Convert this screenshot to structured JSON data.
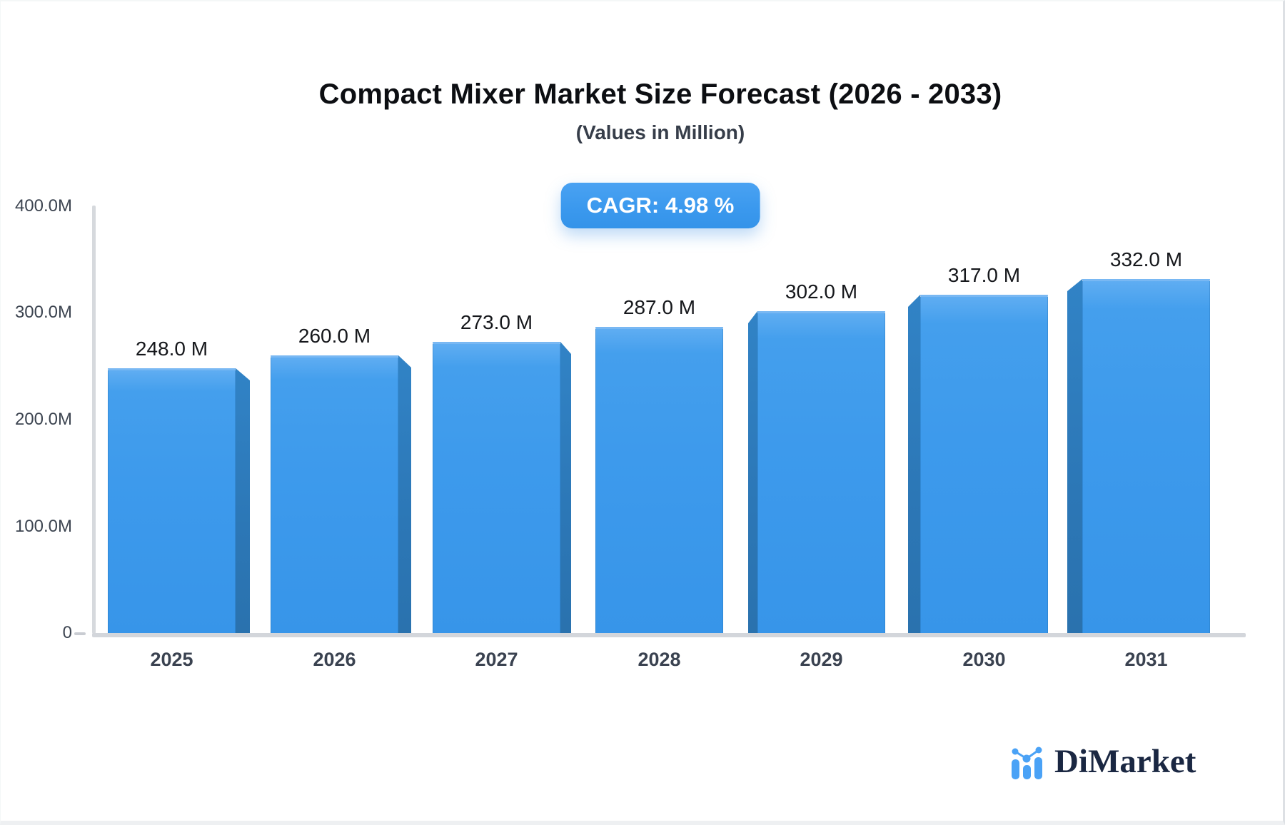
{
  "page": {
    "title": "Compact Mixer Market Size Forecast (2026 - 2033)",
    "subtitle": "(Values in Million)",
    "cagr_badge": "CAGR: 4.98 %"
  },
  "chart_data": {
    "type": "bar",
    "title": "Compact Mixer Market Size Forecast (2026 - 2033)",
    "subtitle": "(Values in Million)",
    "unit": "Million",
    "categories": [
      "2025",
      "2026",
      "2027",
      "2028",
      "2029",
      "2030",
      "2031"
    ],
    "values": [
      248,
      260,
      273,
      287,
      302,
      317,
      332
    ],
    "bar_labels": [
      "248.0 M",
      "260.0 M",
      "273.0 M",
      "287.0 M",
      "302.0 M",
      "317.0 M",
      "332.0 M"
    ],
    "yticks": [
      {
        "value": 400,
        "label": "400.0M"
      },
      {
        "value": 300,
        "label": "300.0M"
      },
      {
        "value": 200,
        "label": "200.0M"
      },
      {
        "value": 100,
        "label": "100.0M"
      },
      {
        "value": 0,
        "label": "0"
      }
    ],
    "ylim": [
      0,
      400
    ],
    "xlabel": "",
    "ylabel": "",
    "grid": false,
    "legend": "none",
    "bar_color": "#3d9aec",
    "bar_side_color": "#2c77b6",
    "cagr_percent": 4.98
  },
  "branding": {
    "logo_text": "DiMarket",
    "logo_icon": "bar-chart-trend-icon",
    "logo_icon_color": "#4aa2f6",
    "logo_text_color": "#1a2742"
  },
  "colors": {
    "accent_blue": "#3b99ee",
    "axis_gray": "#d5d8dc",
    "title_color": "#0c0e12",
    "badge_text": "#ffffff"
  }
}
